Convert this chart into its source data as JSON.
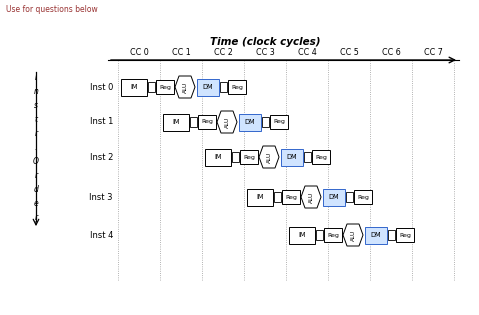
{
  "title": "Time (clock cycles)",
  "subtitle": "Use for questions below",
  "cc_labels": [
    "CC 0",
    "CC 1",
    "CC 2",
    "CC 3",
    "CC 4",
    "CC 5",
    "CC 6",
    "CC 7"
  ],
  "inst_labels": [
    "Inst 0",
    "Inst 1",
    "Inst 2",
    "Inst 3",
    "Inst 4"
  ],
  "bg_color": "#ffffff",
  "dm_fill": "#d0e4ff",
  "dm_border": "#3366cc",
  "text_color": "#000000",
  "inst_start_cc": [
    0,
    1,
    2,
    3,
    4
  ],
  "figsize": [
    4.79,
    3.15
  ],
  "dpi": 100
}
